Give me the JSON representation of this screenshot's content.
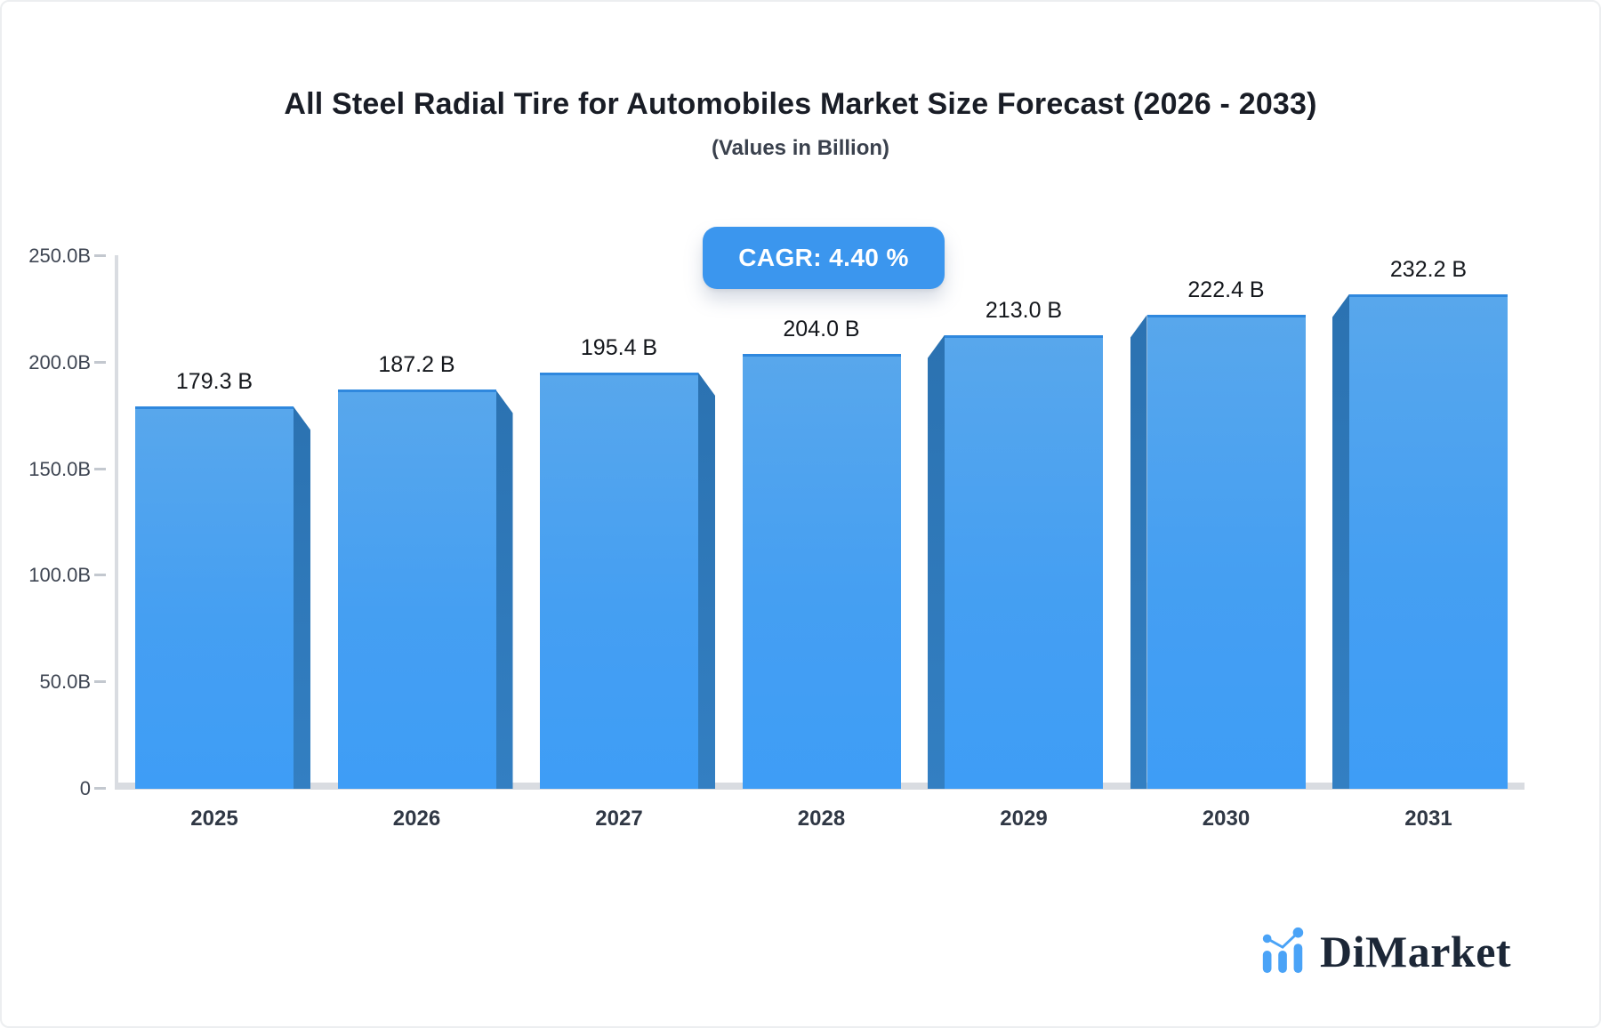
{
  "chart_data": {
    "type": "bar",
    "title": "All Steel Radial Tire for Automobiles Market Size Forecast (2026 - 2033)",
    "subtitle": "(Values in Billion)",
    "cagr_badge": "CAGR: 4.40 %",
    "categories": [
      "2025",
      "2026",
      "2027",
      "2028",
      "2029",
      "2030",
      "2031"
    ],
    "values": [
      179.3,
      187.2,
      195.4,
      204.0,
      213.0,
      222.4,
      232.2
    ],
    "value_labels": [
      "179.3 B",
      "187.2 B",
      "195.4 B",
      "204.0 B",
      "213.0 B",
      "222.4 B",
      "232.2 B"
    ],
    "ylim": [
      0,
      250
    ],
    "y_ticks": [
      {
        "label": "250.0B",
        "value": 250
      },
      {
        "label": "200.0B",
        "value": 200
      },
      {
        "label": "150.0B",
        "value": 150
      },
      {
        "label": "100.0B",
        "value": 100
      },
      {
        "label": "50.0B",
        "value": 50
      },
      {
        "label": "0",
        "value": 0
      }
    ],
    "grid": false,
    "legend": "none",
    "bar_color": "#459ff2",
    "bar_side_color": "#2d76b6",
    "badge_color": "#3b96ee"
  },
  "branding": {
    "logo_text": "DiMarket"
  }
}
